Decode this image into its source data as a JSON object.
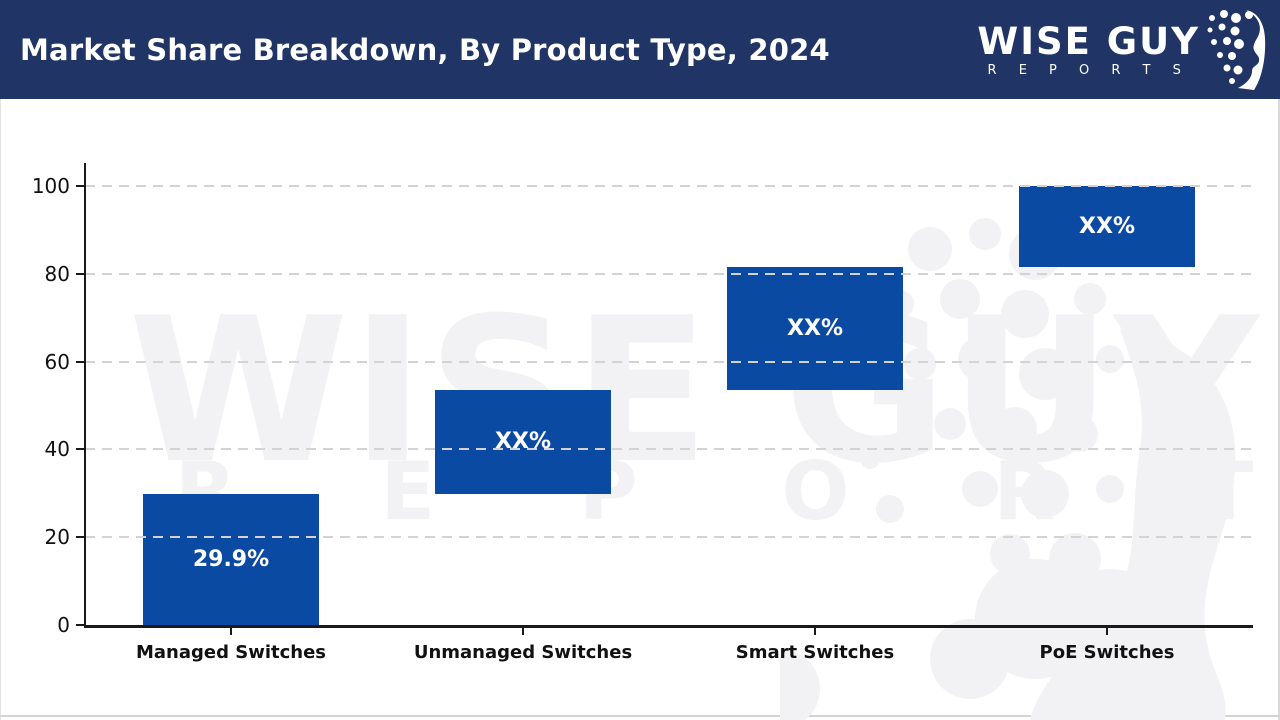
{
  "header": {
    "title": "Market Share Breakdown, By Product Type, 2024",
    "logo": {
      "line1": "WISE GUY",
      "line2": "R E P O R T S"
    },
    "bg_color": "#203566"
  },
  "watermark": {
    "line1": "WISE GUY",
    "line2": "R E P O R T S"
  },
  "chart_data": {
    "type": "bar",
    "subtype": "waterfall",
    "title": "Market Share Breakdown, By Product Type, 2024",
    "categories": [
      "Managed Switches",
      "Unmanaged Switches",
      "Smart Switches",
      "PoE Switches"
    ],
    "segments": [
      {
        "category": "Managed Switches",
        "start": 0,
        "end": 29.9,
        "label": "29.9%"
      },
      {
        "category": "Unmanaged Switches",
        "start": 29.9,
        "end": 53.5,
        "label": "XX%"
      },
      {
        "category": "Smart Switches",
        "start": 53.5,
        "end": 81.5,
        "label": "XX%"
      },
      {
        "category": "PoE Switches",
        "start": 81.5,
        "end": 100,
        "label": "XX%"
      }
    ],
    "ylim": [
      0,
      100
    ],
    "yticks": [
      0,
      20,
      40,
      60,
      80,
      100
    ],
    "grid": "horizontal-dashed",
    "legend": "none",
    "bar_color": "#0b4aa2",
    "bar_label_color": "#ffffff",
    "xlabel": "",
    "ylabel": ""
  }
}
